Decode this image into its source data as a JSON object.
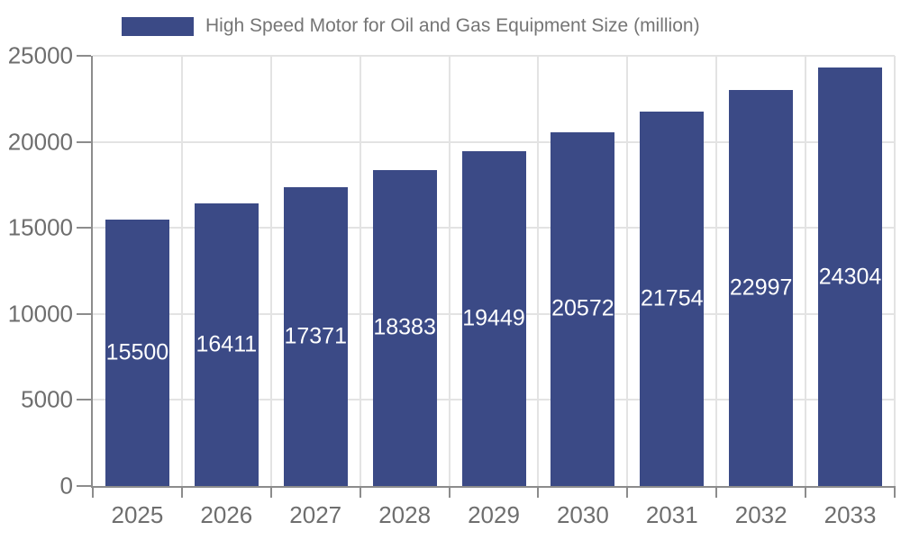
{
  "legend": {
    "label": "High Speed Motor for Oil and Gas Equipment Size (million)"
  },
  "chart_data": {
    "type": "bar",
    "title": "High Speed Motor for Oil and Gas Equipment Size (million)",
    "categories": [
      "2025",
      "2026",
      "2027",
      "2028",
      "2029",
      "2030",
      "2031",
      "2032",
      "2033"
    ],
    "values": [
      15500,
      16411,
      17371,
      18383,
      19449,
      20572,
      21754,
      22997,
      24304
    ],
    "xlabel": "",
    "ylabel": "",
    "ylim": [
      0,
      25000
    ],
    "yticks": [
      0,
      5000,
      10000,
      15000,
      20000,
      25000
    ],
    "grid": true,
    "legend_position": "top-left",
    "bar_color": "#3B4A86",
    "value_label_color": "#ffffff",
    "axis_color": "#8c8c8c",
    "grid_color": "#e3e3e3",
    "tick_label_color": "#6e6e6e",
    "legend_text_color": "#757575"
  }
}
